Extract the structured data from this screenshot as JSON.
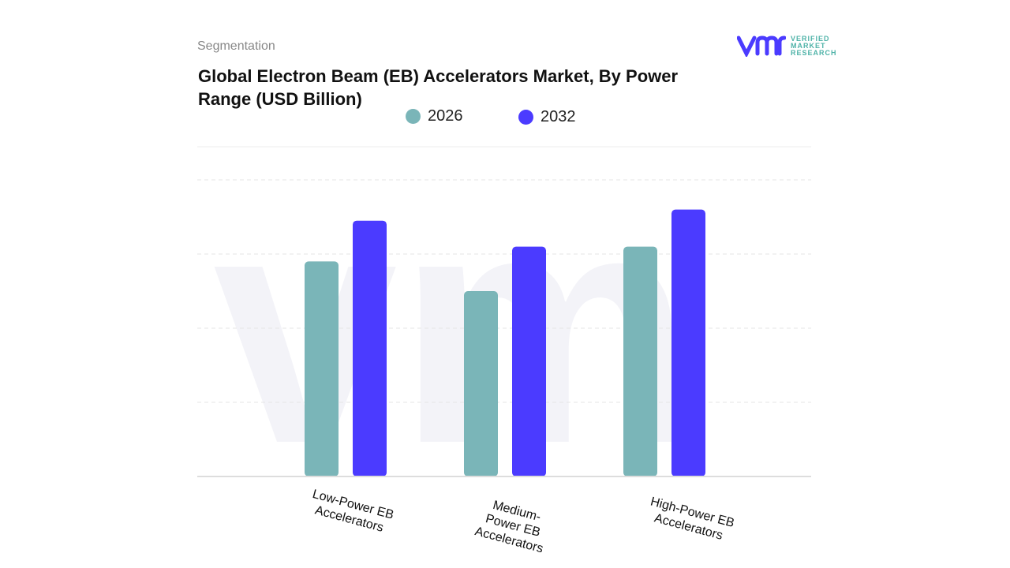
{
  "header": {
    "section": "Segmentation",
    "title": "Global Electron Beam (EB) Accelerators Market, By Power Range (USD Billion)"
  },
  "logo": {
    "name": "vmr",
    "line1": "VERIFIED",
    "line2": "MARKET",
    "line3": "RESEARCH"
  },
  "chart_data": {
    "type": "bar",
    "title": "Global Electron Beam (EB) Accelerators Market, By Power Range (USD Billion)",
    "categories": [
      "Low-Power EB Accelerators",
      "Medium-Power EB Accelerators",
      "High-Power EB Accelerators"
    ],
    "series": [
      {
        "name": "2026",
        "color": "#7ab5b8",
        "values": [
          2.9,
          2.5,
          3.1
        ]
      },
      {
        "name": "2032",
        "color": "#4b3bff",
        "values": [
          3.45,
          3.1,
          3.6
        ]
      }
    ],
    "ylim": [
      0,
      4.5
    ],
    "grid": true,
    "legend": "top",
    "xlabel": "",
    "ylabel": ""
  }
}
